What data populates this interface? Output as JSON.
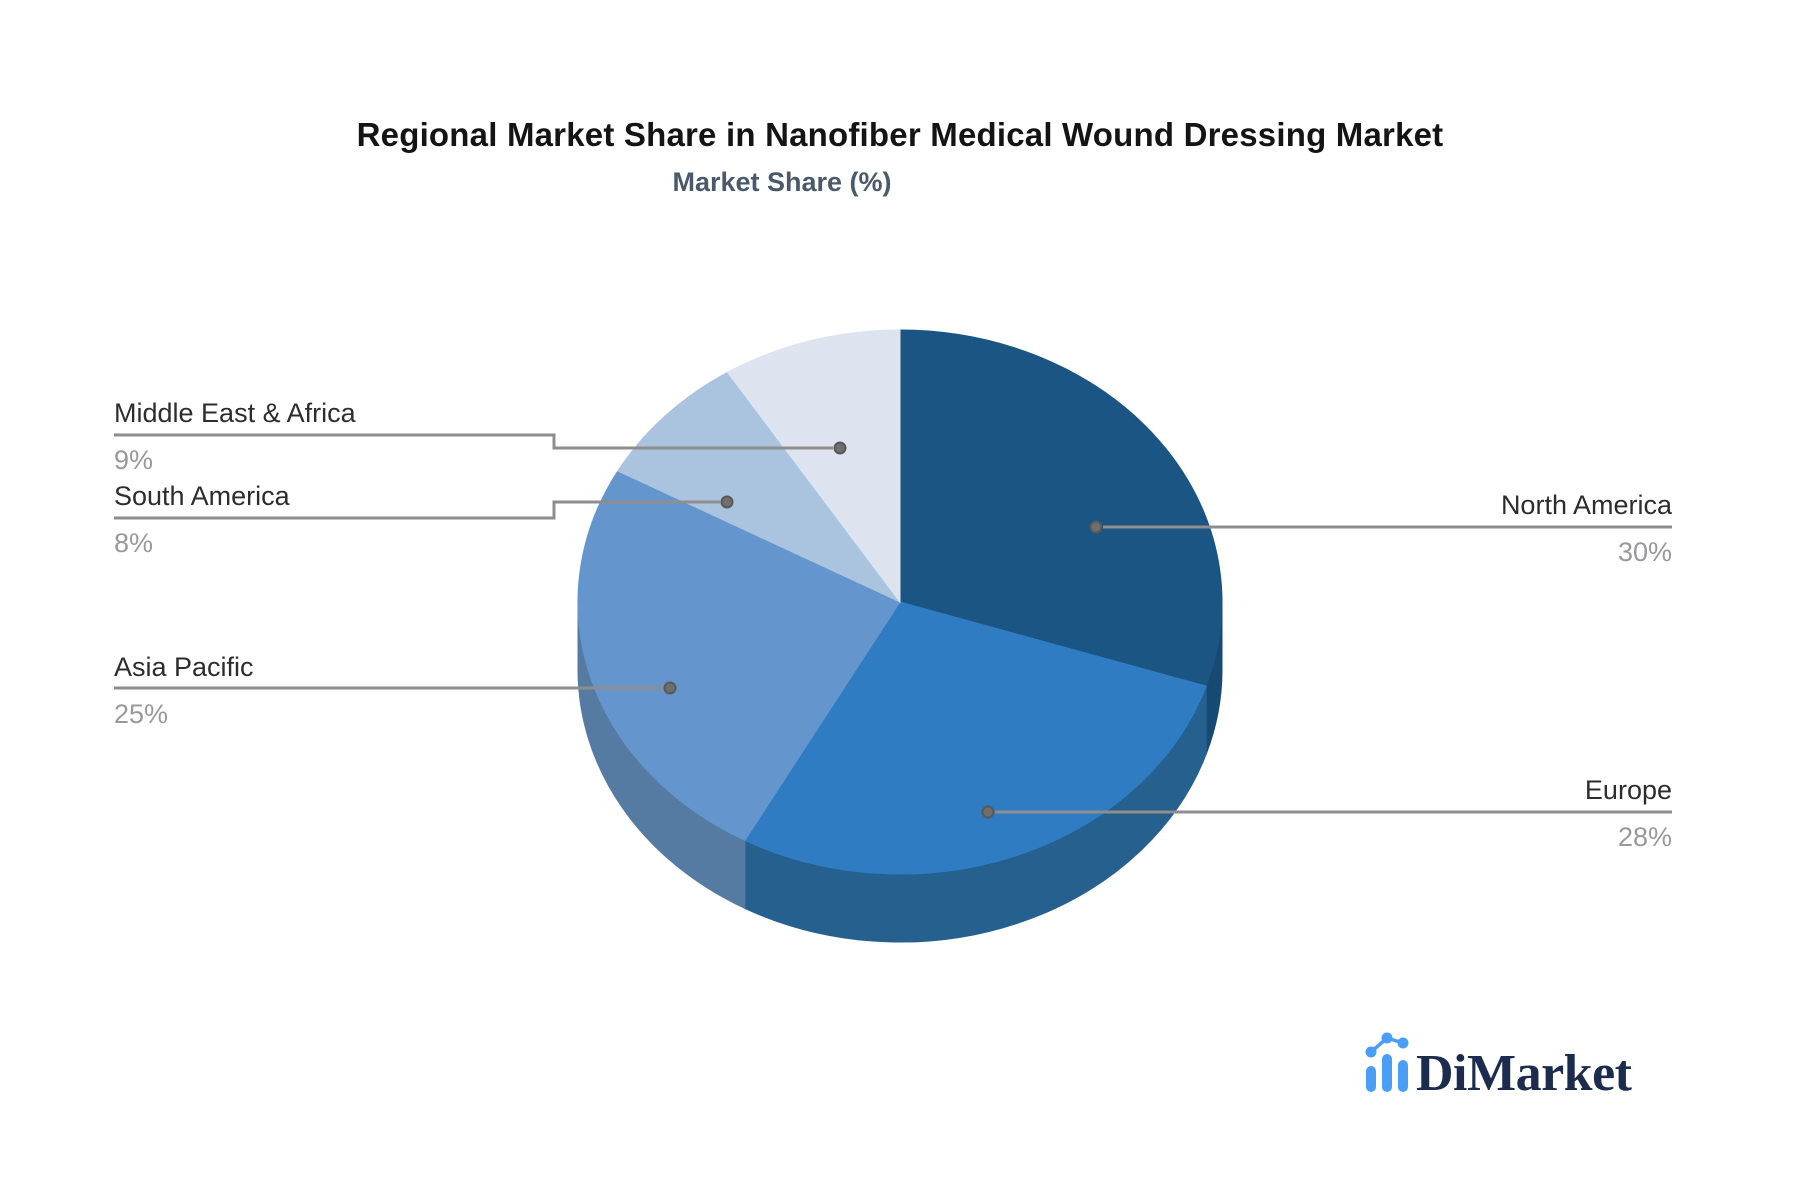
{
  "header": {
    "title": "Regional Market Share in Nanofiber Medical Wound Dressing Market",
    "subtitle": "Market Share (%)"
  },
  "chart_data": {
    "type": "pie",
    "style": "3d",
    "title": "Regional Market Share in Nanofiber Medical Wound Dressing Market",
    "subtitle": "Market Share (%)",
    "unit": "percent",
    "direction": "clockwise",
    "start_angle": "12-o-clock",
    "legend_position": "callout-labels",
    "slices": [
      {
        "label": "North America",
        "value": 30,
        "pct": "30%",
        "color": "#1b5584",
        "side_color": "#164a72"
      },
      {
        "label": "Europe",
        "value": 28,
        "pct": "28%",
        "color": "#2f7cc2",
        "side_color": "#26608f"
      },
      {
        "label": "Asia Pacific",
        "value": 25,
        "pct": "25%",
        "color": "#6496cd",
        "side_color": "#567ba3"
      },
      {
        "label": "South America",
        "value": 8,
        "pct": "8%",
        "color": "#aac3df",
        "side_color": "#8fa9c4"
      },
      {
        "label": "Middle East & Africa",
        "value": 9,
        "pct": "9%",
        "color": "#dde4ef",
        "side_color": "#b8c3d4"
      }
    ]
  },
  "colors": {
    "background": "#ffffff",
    "title": "#141414",
    "subtitle": "#4b5a6a",
    "label_text": "#2d2d2d",
    "pct_text": "#98999b",
    "leader_line": "#8e8e8e",
    "dot_fill": "#6f6f6f",
    "dot_stroke": "#595959"
  },
  "logo": {
    "text": "DiMarket",
    "icon": "bar-chart-trend-icon",
    "icon_color": "#4b9ef7",
    "text_color": "#1c2c4e"
  }
}
